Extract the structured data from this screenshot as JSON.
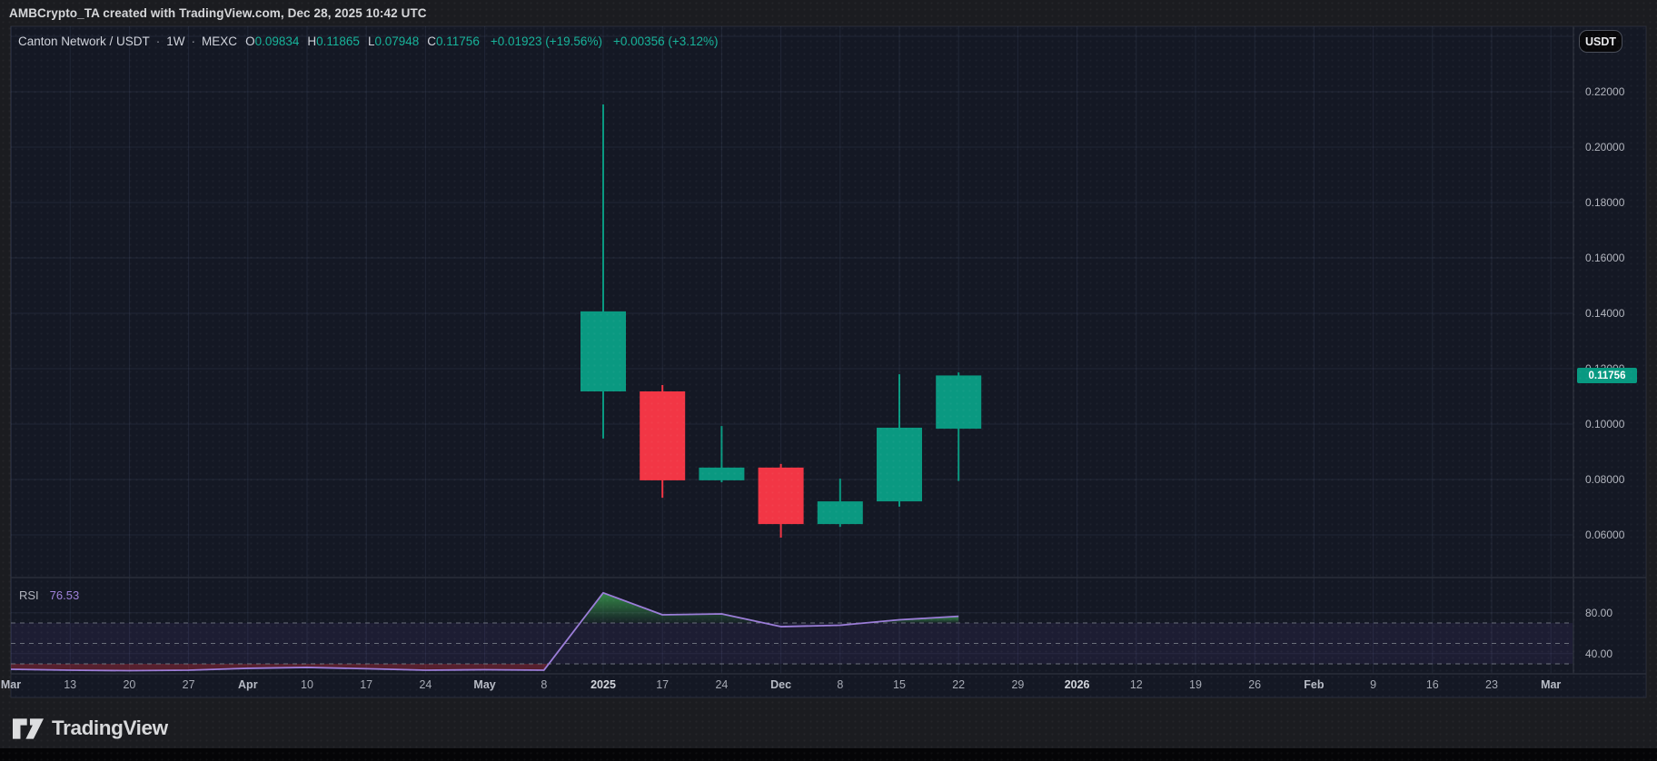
{
  "header": {
    "watermark": "AMBCrypto_TA created with TradingView.com, Dec 28, 2025 10:42 UTC"
  },
  "legend": {
    "symbol": "Canton Network / USDT",
    "dot": "·",
    "interval": "1W",
    "exchange": "MEXC",
    "ohlc": [
      {
        "k": "O",
        "v": "0.09834"
      },
      {
        "k": "H",
        "v": "0.11865"
      },
      {
        "k": "L",
        "v": "0.07948"
      },
      {
        "k": "C",
        "v": "0.11756"
      }
    ],
    "change_abs": "+0.01923 (+19.56%)",
    "change_pct": "+0.00356 (+3.12%)"
  },
  "price_scale": {
    "currency_button": "USDT",
    "labels": [
      "0.22000",
      "0.20000",
      "0.18000",
      "0.16000",
      "0.14000",
      "0.12000",
      "0.10000",
      "0.08000",
      "0.06000"
    ],
    "label_values": [
      0.22,
      0.2,
      0.18,
      0.16,
      0.14,
      0.12,
      0.1,
      0.08,
      0.06
    ],
    "last_price": "0.11756"
  },
  "rsi_pane": {
    "title": "RSI",
    "value": "76.53",
    "axis_labels": [
      {
        "text": "80.00",
        "v": 80
      },
      {
        "text": "40.00",
        "v": 40
      }
    ]
  },
  "time_scale": {
    "ticks": [
      {
        "t": "Mar",
        "kind": "month"
      },
      {
        "t": "13",
        "kind": "day"
      },
      {
        "t": "20",
        "kind": "day"
      },
      {
        "t": "27",
        "kind": "day"
      },
      {
        "t": "Apr",
        "kind": "month"
      },
      {
        "t": "10",
        "kind": "day"
      },
      {
        "t": "17",
        "kind": "day"
      },
      {
        "t": "24",
        "kind": "day"
      },
      {
        "t": "May",
        "kind": "month"
      },
      {
        "t": "8",
        "kind": "day"
      },
      {
        "t": "2025",
        "kind": "year"
      },
      {
        "t": "17",
        "kind": "day"
      },
      {
        "t": "24",
        "kind": "day"
      },
      {
        "t": "Dec",
        "kind": "month"
      },
      {
        "t": "8",
        "kind": "day"
      },
      {
        "t": "15",
        "kind": "day"
      },
      {
        "t": "22",
        "kind": "day"
      },
      {
        "t": "29",
        "kind": "day"
      },
      {
        "t": "2026",
        "kind": "year"
      },
      {
        "t": "12",
        "kind": "day"
      },
      {
        "t": "19",
        "kind": "day"
      },
      {
        "t": "26",
        "kind": "day"
      },
      {
        "t": "Feb",
        "kind": "month"
      },
      {
        "t": "9",
        "kind": "day"
      },
      {
        "t": "16",
        "kind": "day"
      },
      {
        "t": "23",
        "kind": "day"
      },
      {
        "t": "Mar",
        "kind": "month"
      }
    ]
  },
  "footer": {
    "brand": "TradingView"
  },
  "colors": {
    "up": "#0a9981",
    "down": "#f23645",
    "legend_value_green": "#17b39a",
    "rsi_line": "#9b7dd8",
    "rsi_band_fill": "rgba(136,94,230,0.08)",
    "rsi_overbought_fill": "#3fae54",
    "rsi_oversold_fill": "rgba(242,54,69,0.30)",
    "panel_bg": "#141824",
    "grid": "rgba(125,138,175,0.13)",
    "separator": "#2a2e39",
    "dashed_level": "#6b6f7b",
    "price_tag_bg": "#089981"
  },
  "chart_data": {
    "type": "candlestick+rsi",
    "title": "Canton Network / USDT · 1W · MEXC",
    "price_axis": {
      "visible_min": 0.05,
      "visible_max": 0.235,
      "grid_step": 0.02,
      "side": "right"
    },
    "candles": [
      {
        "tick": 10,
        "label": "2025",
        "o": 0.1118,
        "h": 0.2154,
        "l": 0.0948,
        "c": 0.1407
      },
      {
        "tick": 11,
        "label": "17",
        "o": 0.1118,
        "h": 0.1141,
        "l": 0.0734,
        "c": 0.0797
      },
      {
        "tick": 12,
        "label": "24",
        "o": 0.0797,
        "h": 0.0993,
        "l": 0.079,
        "c": 0.0843
      },
      {
        "tick": 13,
        "label": "Dec",
        "o": 0.0843,
        "h": 0.0856,
        "l": 0.059,
        "c": 0.0639
      },
      {
        "tick": 14,
        "label": "8",
        "o": 0.0639,
        "h": 0.0803,
        "l": 0.0629,
        "c": 0.0721
      },
      {
        "tick": 15,
        "label": "15",
        "o": 0.0721,
        "h": 0.118,
        "l": 0.0702,
        "c": 0.0987
      },
      {
        "tick": 16,
        "label": "22",
        "o": 0.09834,
        "h": 0.11865,
        "l": 0.07948,
        "c": 0.11756
      }
    ],
    "last_close": 0.11756,
    "rsi": {
      "current": 76.53,
      "levels_dashed": [
        70,
        50,
        30
      ],
      "band": [
        70,
        30
      ],
      "points": [
        {
          "tick": 0,
          "v": 24.7
        },
        {
          "tick": 1,
          "v": 23.8
        },
        {
          "tick": 2,
          "v": 23.3
        },
        {
          "tick": 3,
          "v": 23.8
        },
        {
          "tick": 4,
          "v": 25.6
        },
        {
          "tick": 5,
          "v": 26.5
        },
        {
          "tick": 6,
          "v": 25.2
        },
        {
          "tick": 7,
          "v": 23.8
        },
        {
          "tick": 8,
          "v": 24.2
        },
        {
          "tick": 9,
          "v": 23.8
        },
        {
          "tick": 10,
          "v": 99.5
        },
        {
          "tick": 11,
          "v": 78.0
        },
        {
          "tick": 12,
          "v": 78.9
        },
        {
          "tick": 13,
          "v": 66.4
        },
        {
          "tick": 14,
          "v": 67.8
        },
        {
          "tick": 15,
          "v": 73.1
        },
        {
          "tick": 16,
          "v": 76.53
        }
      ]
    }
  }
}
